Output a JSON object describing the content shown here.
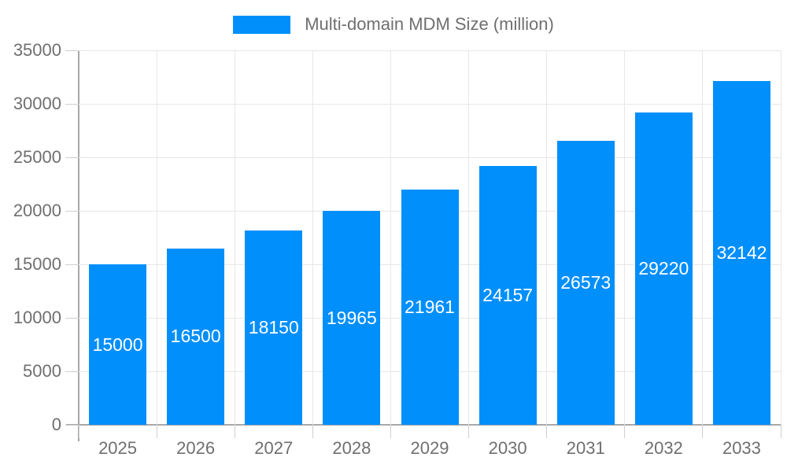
{
  "chart_data": {
    "type": "bar",
    "title": "",
    "legend": "Multi-domain MDM Size (million)",
    "legend_position": "top",
    "categories": [
      "2025",
      "2026",
      "2027",
      "2028",
      "2029",
      "2030",
      "2031",
      "2032",
      "2033"
    ],
    "series": [
      {
        "name": "Multi-domain MDM Size (million)",
        "values": [
          15000,
          16500,
          18150,
          19965,
          21961,
          24157,
          26573,
          29220,
          32142
        ]
      }
    ],
    "xlabel": "",
    "ylabel": "",
    "ylim": [
      0,
      35000
    ],
    "ytick_step": 5000,
    "grid": true,
    "data_labels": "inside-center",
    "bar_color": "#008FFB",
    "data_label_color": "#ffffff",
    "axis_text_color": "#6f6f6f",
    "gridline_color": "#e7e7e7",
    "axis_line_color": "#a8a8a8"
  }
}
